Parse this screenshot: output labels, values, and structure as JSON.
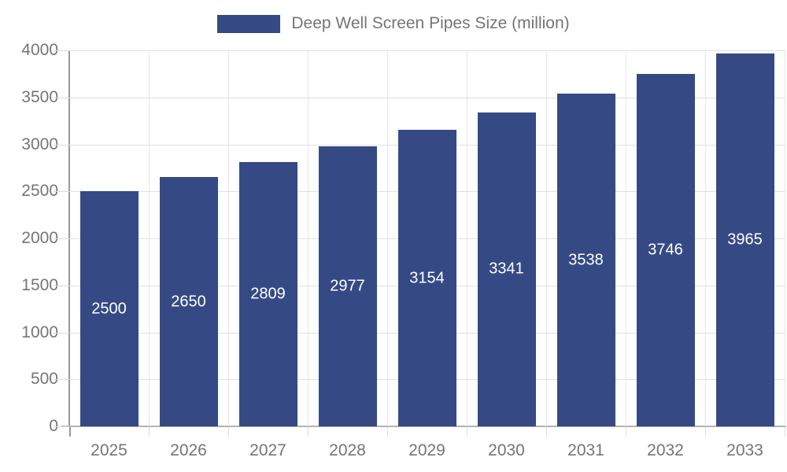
{
  "legend": {
    "label": "Deep Well Screen Pipes Size (million)"
  },
  "chart_data": {
    "type": "bar",
    "title": "Deep Well Screen Pipes Size (million)",
    "categories": [
      "2025",
      "2026",
      "2027",
      "2028",
      "2029",
      "2030",
      "2031",
      "2032",
      "2033"
    ],
    "values": [
      2500,
      2650,
      2809,
      2977,
      3154,
      3341,
      3538,
      3746,
      3965
    ],
    "series_name": "Deep Well Screen Pipes Size (million)",
    "xlabel": "",
    "ylabel": "",
    "ylim": [
      0,
      4000
    ],
    "yticks": [
      0,
      500,
      1000,
      1500,
      2000,
      2500,
      3000,
      3500,
      4000
    ],
    "bar_labels_visible": true,
    "grid": true,
    "legend_position": "top-center",
    "colors": {
      "bar": "#354a85",
      "bar_label": "#ffffff",
      "axis_text": "#757575",
      "grid_line": "#e0e0e0",
      "axis_line_y": "#999999",
      "axis_line_x": "#b3b3b3",
      "tick": "#d9d9d9",
      "background": "#ffffff"
    }
  }
}
